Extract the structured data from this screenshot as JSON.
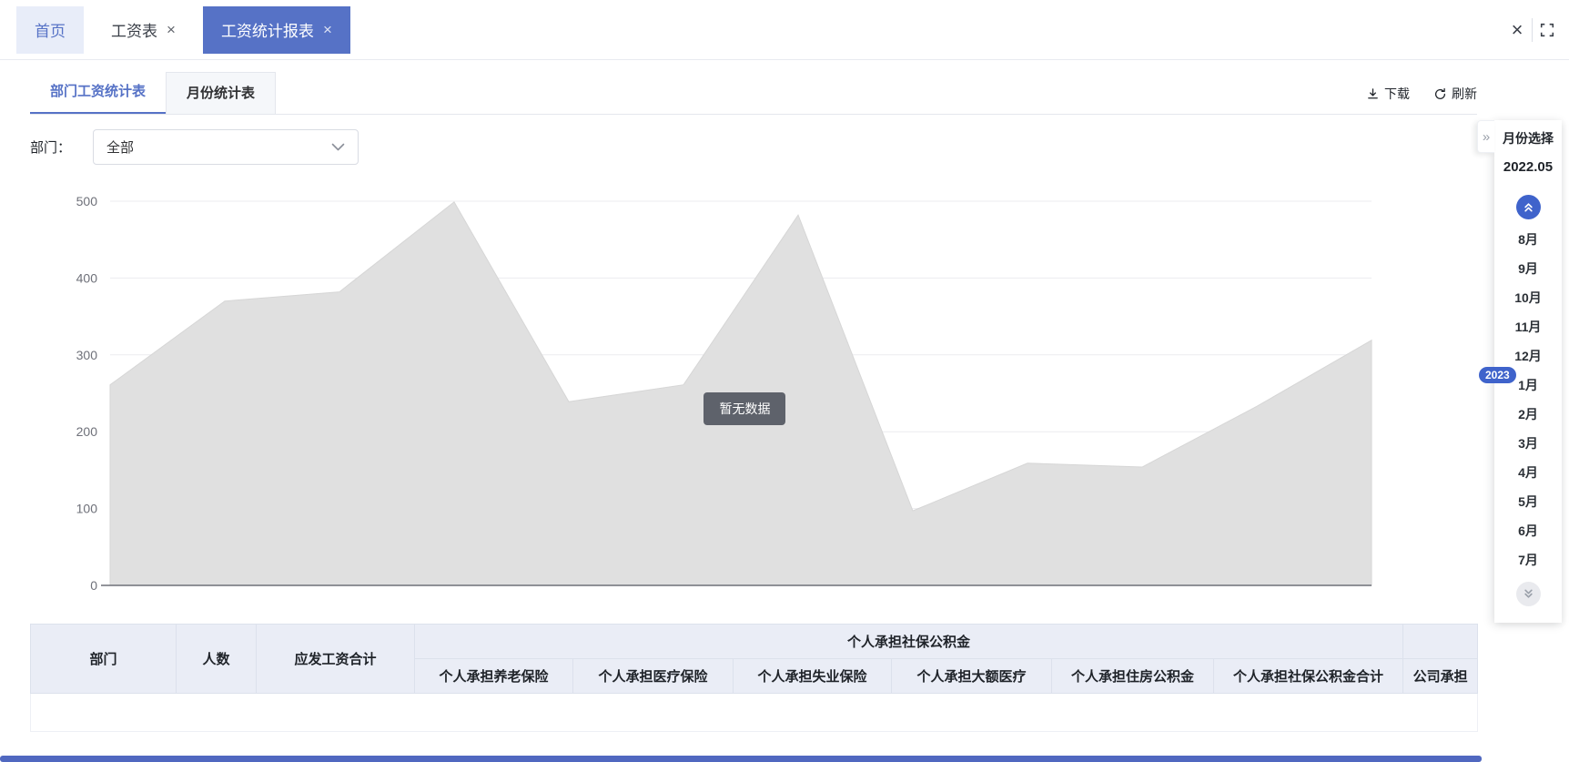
{
  "colors": {
    "accent": "#5672c6",
    "accent_deep": "#3f63cb",
    "area_fill": "#e0e0e0",
    "area_stroke": "#d6d6d6",
    "grid_line": "#ececef",
    "axis_line": "#6e7079"
  },
  "topbar": {
    "tabs": [
      {
        "label": "首页"
      },
      {
        "label": "工资表"
      },
      {
        "label": "工资统计报表"
      }
    ],
    "close_symbol": "×"
  },
  "window": {
    "close_symbol": "×"
  },
  "subtabs": [
    {
      "label": "部门工资统计表"
    },
    {
      "label": "月份统计表"
    }
  ],
  "toolbar": {
    "download": "下载",
    "refresh": "刷新"
  },
  "filter": {
    "label": "部门：",
    "value": "全部"
  },
  "chart_data": {
    "type": "area",
    "title": "",
    "xlabel": "",
    "ylabel": "",
    "x": [
      1,
      2,
      3,
      4,
      5,
      6,
      7,
      8,
      9,
      10,
      11,
      12
    ],
    "values": [
      261,
      370,
      382,
      499,
      239,
      261,
      482,
      97,
      159,
      154,
      233,
      319
    ],
    "ylim": [
      0,
      500
    ],
    "yticks": [
      0,
      100,
      200,
      300,
      400,
      500
    ],
    "grid": true,
    "legend": "none",
    "empty_text": "暂无数据"
  },
  "month_panel": {
    "collapse_symbol": "»",
    "title": "月份选择",
    "current": "2022.05",
    "year_badge": "2023",
    "months": [
      "8月",
      "9月",
      "10月",
      "11月",
      "12月",
      "1月",
      "2月",
      "3月",
      "4月",
      "5月",
      "6月",
      "7月"
    ]
  },
  "table": {
    "col_dept": "部门",
    "col_headcount": "人数",
    "col_gross": "应发工资合计",
    "group_personal": "个人承担社保公积金",
    "personal_columns": [
      "个人承担养老保险",
      "个人承担医疗保险",
      "个人承担失业保险",
      "个人承担大额医疗",
      "个人承担住房公积金",
      "个人承担社保公积金合计"
    ],
    "col_company_partial": "公司承担"
  }
}
